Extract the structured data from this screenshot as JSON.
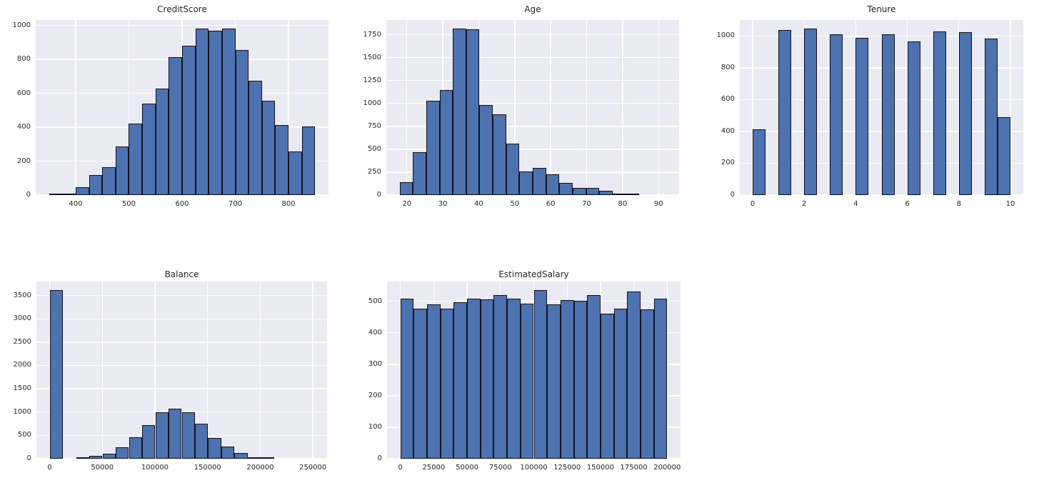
{
  "figure": {
    "background": "#ffffff",
    "plot_background": "#eaeaf2",
    "grid_color": "#ffffff",
    "bar_fill": "#4c72b0",
    "bar_edge": "#11111d",
    "text_color": "#262626"
  },
  "chart_data": [
    {
      "type": "bar",
      "subtype": "histogram",
      "title": "CreditScore",
      "xlabel": "",
      "ylabel": "",
      "grid": true,
      "legend": false,
      "bins": 20,
      "bin_start": 350,
      "bin_end": 850,
      "values": [
        10,
        2,
        45,
        120,
        165,
        285,
        420,
        540,
        628,
        815,
        880,
        983,
        970,
        983,
        855,
        673,
        557,
        412,
        255,
        406
      ],
      "x_ticks": [
        400,
        500,
        600,
        700,
        800
      ],
      "y_ticks": [
        0,
        200,
        400,
        600,
        800,
        1000
      ],
      "xlim": [
        325,
        875
      ],
      "ylim": [
        0,
        1032
      ]
    },
    {
      "type": "bar",
      "subtype": "histogram",
      "title": "Age",
      "xlabel": "",
      "ylabel": "",
      "grid": true,
      "legend": false,
      "bins": 20,
      "bin_start": 18,
      "bin_end": 92,
      "values": [
        140,
        465,
        1030,
        1145,
        1820,
        1810,
        985,
        885,
        565,
        255,
        295,
        225,
        130,
        75,
        75,
        45,
        12,
        9,
        0,
        0
      ],
      "x_ticks": [
        20,
        30,
        40,
        50,
        60,
        70,
        80,
        90
      ],
      "y_ticks": [
        0,
        250,
        500,
        750,
        1000,
        1250,
        1500,
        1750
      ],
      "xlim": [
        14.3,
        95.7
      ],
      "ylim": [
        0,
        1911
      ]
    },
    {
      "type": "bar",
      "subtype": "histogram",
      "title": "Tenure",
      "xlabel": "",
      "ylabel": "",
      "grid": true,
      "legend": false,
      "bins": 20,
      "bin_start": 0,
      "bin_end": 10,
      "values": [
        413,
        0,
        1035,
        0,
        1048,
        0,
        1009,
        0,
        989,
        0,
        1012,
        0,
        967,
        0,
        1028,
        0,
        1025,
        0,
        984,
        490
      ],
      "x_ticks": [
        0,
        2,
        4,
        6,
        8,
        10
      ],
      "y_ticks": [
        0,
        200,
        400,
        600,
        800,
        1000
      ],
      "xlim": [
        -0.5,
        10.5
      ],
      "ylim": [
        0,
        1100
      ]
    },
    {
      "type": "bar",
      "subtype": "histogram",
      "title": "Balance",
      "xlabel": "",
      "ylabel": "",
      "grid": true,
      "legend": false,
      "bins": 20,
      "bin_start": 0,
      "bin_end": 250898,
      "values": [
        3620,
        0,
        15,
        55,
        110,
        240,
        460,
        720,
        1000,
        1070,
        1000,
        755,
        445,
        265,
        125,
        35,
        20,
        0,
        0,
        0
      ],
      "x_ticks": [
        0,
        50000,
        100000,
        150000,
        200000,
        250000
      ],
      "y_ticks": [
        0,
        500,
        1000,
        1500,
        2000,
        2500,
        3000,
        3500
      ],
      "xlim": [
        -12545,
        263443
      ],
      "ylim": [
        0,
        3800
      ]
    },
    {
      "type": "bar",
      "subtype": "histogram",
      "title": "EstimatedSalary",
      "xlabel": "",
      "ylabel": "",
      "grid": true,
      "legend": false,
      "bins": 20,
      "bin_start": 0,
      "bin_end": 200000,
      "values": [
        508,
        477,
        491,
        477,
        497,
        508,
        506,
        519,
        508,
        493,
        535,
        491,
        504,
        502,
        519,
        462,
        477,
        531,
        475,
        508
      ],
      "x_ticks": [
        0,
        25000,
        50000,
        75000,
        100000,
        125000,
        150000,
        175000,
        200000
      ],
      "y_ticks": [
        0,
        100,
        200,
        300,
        400,
        500
      ],
      "xlim": [
        -10000,
        210000
      ],
      "ylim": [
        0,
        563
      ]
    }
  ]
}
